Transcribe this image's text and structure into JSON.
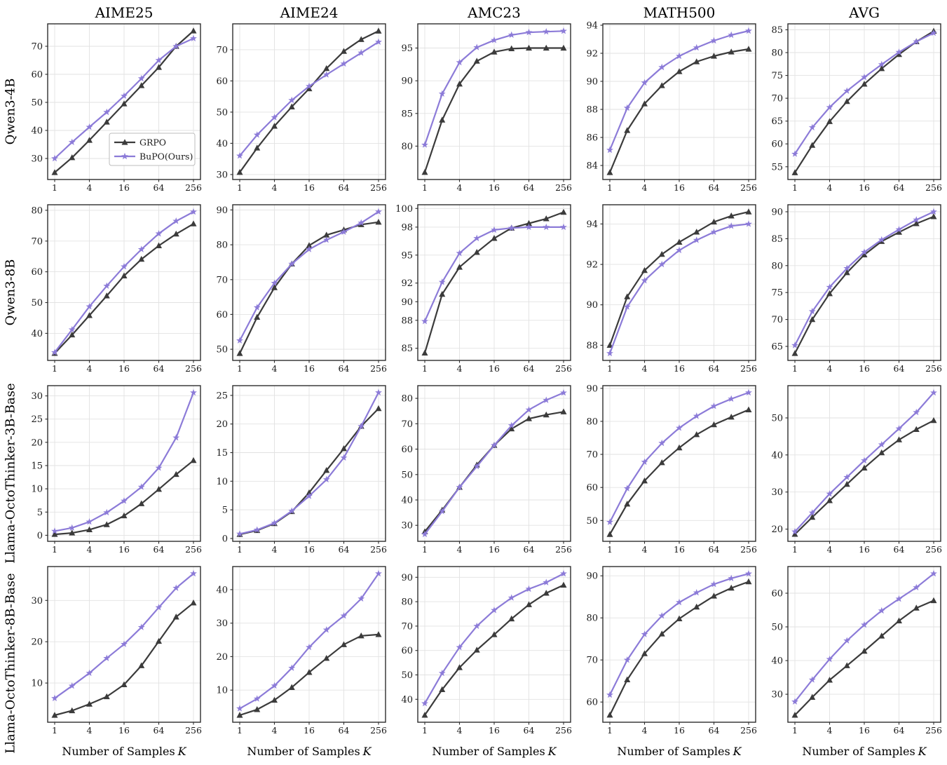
{
  "figure": {
    "columns": [
      "AIME25",
      "AIME24",
      "AMC23",
      "MATH500",
      "AVG"
    ],
    "rows": [
      "Qwen3-4B",
      "Qwen3-8B",
      "Llama-OctoThinker-3B-Base",
      "Llama-OctoThinker-8B-Base"
    ],
    "xlabel_prefix": "Number of Samples",
    "xlabel_var": "K",
    "x_tick_labels": [
      "1",
      "4",
      "16",
      "64",
      "256"
    ],
    "legend": [
      {
        "name": "GRPO",
        "color": "#3b3b3b",
        "marker": "triangle"
      },
      {
        "name": "BuPO(Ours)",
        "color": "#8c7bd8",
        "marker": "star"
      }
    ],
    "colors": {
      "grid": "#e2e2e2",
      "spine": "#2d2d2d",
      "background": "#ffffff"
    }
  },
  "chart_data": {
    "type": "line",
    "x": [
      1,
      2,
      4,
      8,
      16,
      32,
      64,
      128,
      256
    ],
    "x_scale": "log2",
    "x_ticks": [
      1,
      4,
      16,
      64,
      256
    ],
    "grid": true,
    "legend_position": "lower-right of first subplot",
    "subplots": [
      {
        "row": "Qwen3-4B",
        "col": "AIME25",
        "ylim": [
          22.5,
          78.0
        ],
        "yticks": [
          30,
          40,
          50,
          60,
          70
        ],
        "series": [
          {
            "name": "GRPO",
            "values": [
              25.0,
              30.3,
              36.5,
              43.0,
              49.5,
              56.0,
              62.5,
              70.0,
              75.5
            ]
          },
          {
            "name": "BuPO(Ours)",
            "values": [
              30.0,
              35.8,
              41.2,
              46.5,
              52.3,
              58.5,
              65.0,
              70.0,
              72.8
            ]
          }
        ]
      },
      {
        "row": "Qwen3-4B",
        "col": "AIME24",
        "ylim": [
          28.4,
          78.3
        ],
        "yticks": [
          30,
          40,
          50,
          60,
          70
        ],
        "series": [
          {
            "name": "GRPO",
            "values": [
              30.7,
              38.5,
              45.5,
              51.7,
              57.5,
              64.0,
              69.5,
              73.3,
              76.0
            ]
          },
          {
            "name": "BuPO(Ours)",
            "values": [
              36.0,
              42.7,
              48.3,
              53.8,
              58.3,
              62.0,
              65.5,
              69.0,
              72.5
            ]
          }
        ]
      },
      {
        "row": "Qwen3-4B",
        "col": "AMC23",
        "ylim": [
          74.9,
          98.7
        ],
        "yticks": [
          80,
          85,
          90,
          95
        ],
        "series": [
          {
            "name": "GRPO",
            "values": [
              76.0,
              84.0,
              89.5,
              93.0,
              94.4,
              94.9,
              95.0,
              95.0,
              95.0
            ]
          },
          {
            "name": "BuPO(Ours)",
            "values": [
              80.2,
              88.0,
              92.8,
              95.1,
              96.2,
              97.0,
              97.4,
              97.5,
              97.6
            ]
          }
        ]
      },
      {
        "row": "Qwen3-4B",
        "col": "MATH500",
        "ylim": [
          83.0,
          94.1
        ],
        "yticks": [
          84,
          86,
          88,
          90,
          92,
          94
        ],
        "series": [
          {
            "name": "GRPO",
            "values": [
              83.5,
              86.5,
              88.4,
              89.7,
              90.7,
              91.4,
              91.8,
              92.1,
              92.3
            ]
          },
          {
            "name": "BuPO(Ours)",
            "values": [
              85.1,
              88.1,
              89.9,
              91.0,
              91.8,
              92.4,
              92.9,
              93.3,
              93.6
            ]
          }
        ]
      },
      {
        "row": "Qwen3-4B",
        "col": "AVG",
        "ylim": [
          52.2,
          86.3
        ],
        "yticks": [
          55,
          60,
          65,
          70,
          75,
          80,
          85
        ],
        "series": [
          {
            "name": "GRPO",
            "values": [
              53.7,
              59.7,
              64.9,
              69.3,
              73.1,
              76.5,
              79.6,
              82.4,
              84.7
            ]
          },
          {
            "name": "BuPO(Ours)",
            "values": [
              57.8,
              63.6,
              68.0,
              71.6,
              74.6,
              77.4,
              80.1,
              82.4,
              84.3
            ]
          }
        ]
      },
      {
        "row": "Qwen3-8B",
        "col": "AIME25",
        "ylim": [
          31.2,
          81.8
        ],
        "yticks": [
          40,
          50,
          60,
          70,
          80
        ],
        "series": [
          {
            "name": "GRPO",
            "values": [
              33.5,
              39.5,
              45.8,
              52.2,
              58.7,
              64.1,
              68.5,
              72.3,
              75.6
            ]
          },
          {
            "name": "BuPO(Ours)",
            "values": [
              33.8,
              41.2,
              48.7,
              55.4,
              61.7,
              67.3,
              72.4,
              76.5,
              79.5
            ]
          }
        ]
      },
      {
        "row": "Qwen3-8B",
        "col": "AIME24",
        "ylim": [
          46.8,
          91.5
        ],
        "yticks": [
          50,
          60,
          70,
          80,
          90
        ],
        "series": [
          {
            "name": "GRPO",
            "values": [
              48.8,
              59.2,
              67.7,
              74.5,
              79.8,
              82.8,
              84.3,
              85.8,
              86.5
            ]
          },
          {
            "name": "BuPO(Ours)",
            "values": [
              52.5,
              62.0,
              69.0,
              74.5,
              78.7,
              81.4,
              83.7,
              86.3,
              89.5
            ]
          }
        ]
      },
      {
        "row": "Qwen3-8B",
        "col": "AMC23",
        "ylim": [
          83.7,
          100.4
        ],
        "yticks": [
          85,
          88,
          90,
          92,
          95,
          98,
          100
        ],
        "series": [
          {
            "name": "GRPO",
            "values": [
              84.5,
              90.8,
              93.7,
              95.3,
              96.8,
              97.9,
              98.4,
              98.9,
              99.6
            ]
          },
          {
            "name": "BuPO(Ours)",
            "values": [
              87.9,
              92.1,
              95.2,
              96.8,
              97.7,
              97.9,
              98.0,
              98.0,
              98.0
            ]
          }
        ]
      },
      {
        "row": "Qwen3-8B",
        "col": "MATH500",
        "ylim": [
          87.25,
          94.95
        ],
        "yticks": [
          88,
          90,
          92,
          94
        ],
        "series": [
          {
            "name": "GRPO",
            "values": [
              88.0,
              90.4,
              91.7,
              92.5,
              93.1,
              93.6,
              94.1,
              94.4,
              94.6
            ]
          },
          {
            "name": "BuPO(Ours)",
            "values": [
              87.6,
              89.9,
              91.2,
              92.0,
              92.7,
              93.2,
              93.6,
              93.9,
              94.0
            ]
          }
        ]
      },
      {
        "row": "Qwen3-8B",
        "col": "AVG",
        "ylim": [
          62.4,
          91.3
        ],
        "yticks": [
          65,
          70,
          75,
          80,
          85,
          90
        ],
        "series": [
          {
            "name": "GRPO",
            "values": [
              63.7,
              70.0,
              74.8,
              78.7,
              82.0,
              84.5,
              86.2,
              87.8,
              89.1
            ]
          },
          {
            "name": "BuPO(Ours)",
            "values": [
              65.2,
              71.5,
              76.0,
              79.5,
              82.5,
              84.8,
              86.7,
              88.5,
              90.0
            ]
          }
        ]
      },
      {
        "row": "Llama-OctoThinker-3B-Base",
        "col": "AIME25",
        "ylim": [
          -1.3,
          32.2
        ],
        "yticks": [
          0,
          5,
          10,
          15,
          20,
          25,
          30
        ],
        "series": [
          {
            "name": "GRPO",
            "values": [
              0.2,
              0.5,
              1.2,
              2.3,
              4.2,
              6.8,
              9.9,
              13.1,
              16.1
            ]
          },
          {
            "name": "BuPO(Ours)",
            "values": [
              0.9,
              1.6,
              2.9,
              4.9,
              7.4,
              10.4,
              14.5,
              21.0,
              30.7
            ]
          }
        ]
      },
      {
        "row": "Llama-OctoThinker-3B-Base",
        "col": "AIME24",
        "ylim": [
          -0.5,
          26.7
        ],
        "yticks": [
          0,
          5,
          10,
          15,
          20,
          25
        ],
        "series": [
          {
            "name": "GRPO",
            "values": [
              0.7,
              1.4,
              2.6,
              4.7,
              8.0,
              11.9,
              15.7,
              19.6,
              22.7
            ]
          },
          {
            "name": "BuPO(Ours)",
            "values": [
              0.8,
              1.5,
              2.7,
              4.8,
              7.4,
              10.3,
              14.1,
              19.6,
              25.5
            ]
          }
        ]
      },
      {
        "row": "Llama-OctoThinker-3B-Base",
        "col": "AMC23",
        "ylim": [
          23.7,
          85.0
        ],
        "yticks": [
          30,
          40,
          50,
          60,
          70,
          80
        ],
        "series": [
          {
            "name": "GRPO",
            "values": [
              27.5,
              36.0,
              45.0,
              53.8,
              61.5,
              68.0,
              72.0,
              73.5,
              74.7
            ]
          },
          {
            "name": "BuPO(Ours)",
            "values": [
              26.5,
              35.5,
              45.0,
              53.2,
              61.5,
              69.3,
              75.5,
              79.3,
              82.2
            ]
          }
        ]
      },
      {
        "row": "Llama-OctoThinker-3B-Base",
        "col": "MATH500",
        "ylim": [
          43.7,
          90.8
        ],
        "yticks": [
          50,
          60,
          70,
          80,
          90
        ],
        "series": [
          {
            "name": "GRPO",
            "values": [
              45.8,
              55.0,
              62.0,
              67.5,
              72.0,
              76.0,
              79.0,
              81.3,
              83.5
            ]
          },
          {
            "name": "BuPO(Ours)",
            "values": [
              49.5,
              59.7,
              67.7,
              73.4,
              78.0,
              81.6,
              84.6,
              86.8,
              88.7
            ]
          }
        ]
      },
      {
        "row": "Llama-OctoThinker-3B-Base",
        "col": "AVG",
        "ylim": [
          16.7,
          58.7
        ],
        "yticks": [
          20,
          30,
          40,
          50
        ],
        "series": [
          {
            "name": "GRPO",
            "values": [
              18.6,
              23.2,
              27.7,
              32.1,
              36.5,
              40.6,
              44.1,
              46.9,
              49.3
            ]
          },
          {
            "name": "BuPO(Ours)",
            "values": [
              19.3,
              24.4,
              29.5,
              34.0,
              38.5,
              42.8,
              47.1,
              51.5,
              56.8
            ]
          }
        ]
      },
      {
        "row": "Llama-OctoThinker-8B-Base",
        "col": "AIME25",
        "ylim": [
          0.5,
          38.2
        ],
        "yticks": [
          10,
          20,
          30
        ],
        "series": [
          {
            "name": "GRPO",
            "values": [
              2.2,
              3.3,
              4.9,
              6.7,
              9.6,
              14.2,
              20.1,
              26.0,
              29.4
            ]
          },
          {
            "name": "BuPO(Ours)",
            "values": [
              6.3,
              9.3,
              12.4,
              16.0,
              19.4,
              23.5,
              28.3,
              33.0,
              36.5
            ]
          }
        ]
      },
      {
        "row": "Llama-OctoThinker-8B-Base",
        "col": "AIME24",
        "ylim": [
          0.4,
          46.9
        ],
        "yticks": [
          10,
          20,
          30,
          40
        ],
        "series": [
          {
            "name": "GRPO",
            "values": [
              2.5,
              4.2,
              7.0,
              10.8,
              15.3,
              19.5,
              23.6,
              26.2,
              26.6
            ]
          },
          {
            "name": "BuPO(Ours)",
            "values": [
              4.5,
              7.4,
              11.3,
              16.6,
              22.8,
              28.0,
              32.2,
              37.3,
              44.8
            ]
          }
        ]
      },
      {
        "row": "Llama-OctoThinker-8B-Base",
        "col": "AMC23",
        "ylim": [
          30.6,
          94.4
        ],
        "yticks": [
          40,
          50,
          60,
          70,
          80,
          90
        ],
        "series": [
          {
            "name": "GRPO",
            "values": [
              33.5,
              44.0,
              53.0,
              60.2,
              66.5,
              73.0,
              78.8,
              83.5,
              86.8
            ]
          },
          {
            "name": "BuPO(Ours)",
            "values": [
              38.3,
              50.7,
              61.3,
              70.0,
              76.5,
              81.6,
              85.2,
              87.9,
              91.5
            ]
          }
        ]
      },
      {
        "row": "Llama-OctoThinker-8B-Base",
        "col": "MATH500",
        "ylim": [
          55.2,
          92.2
        ],
        "yticks": [
          60,
          70,
          80,
          90
        ],
        "series": [
          {
            "name": "GRPO",
            "values": [
              56.9,
              65.3,
              71.5,
              76.2,
              79.8,
              82.6,
              85.2,
              87.1,
              88.6
            ]
          },
          {
            "name": "BuPO(Ours)",
            "values": [
              61.7,
              70.0,
              76.1,
              80.5,
              83.7,
              86.0,
              88.0,
              89.4,
              90.5
            ]
          }
        ]
      },
      {
        "row": "Llama-OctoThinker-8B-Base",
        "col": "AVG",
        "ylim": [
          21.7,
          67.9
        ],
        "yticks": [
          30,
          40,
          50,
          60
        ],
        "series": [
          {
            "name": "GRPO",
            "values": [
              23.8,
              29.1,
              34.2,
              38.5,
              42.8,
              47.3,
              51.8,
              55.6,
              57.8
            ]
          },
          {
            "name": "BuPO(Ours)",
            "values": [
              27.8,
              34.3,
              40.4,
              45.9,
              50.6,
              54.8,
              58.3,
              61.7,
              65.8
            ]
          }
        ]
      }
    ]
  }
}
